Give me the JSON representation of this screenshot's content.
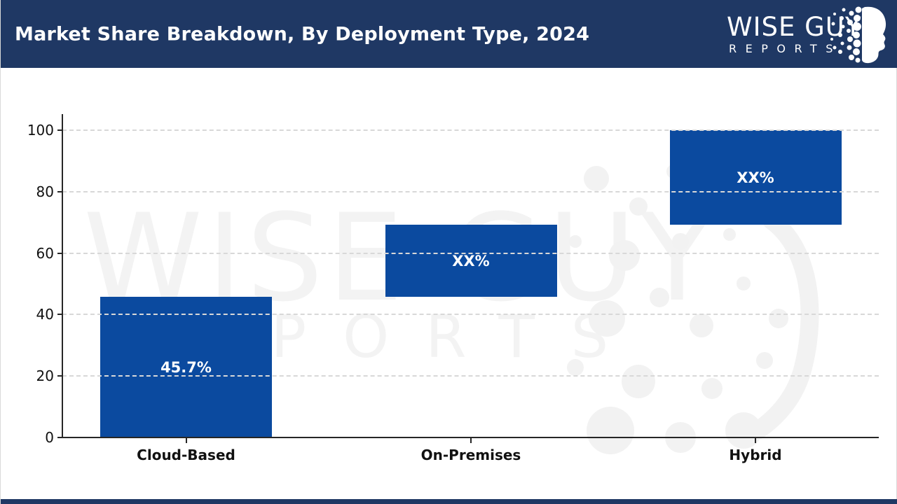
{
  "header": {
    "title": "Market Share Breakdown, By Deployment Type, 2024",
    "logo": {
      "line1": "WISE GUY",
      "line2": "REPORTS"
    }
  },
  "watermark": {
    "line1": "WISE GUY",
    "line2": "REPORTS"
  },
  "chart_data": {
    "type": "bar",
    "subtype": "floating-waterfall",
    "title": "Market Share Breakdown, By Deployment Type, 2024",
    "categories": [
      "Cloud-Based",
      "On-Premises",
      "Hybrid"
    ],
    "segments": [
      {
        "category": "Cloud-Based",
        "start": 0,
        "end": 45.7,
        "label": "45.7%"
      },
      {
        "category": "On-Premises",
        "start": 45.7,
        "end": 69.2,
        "label": "XX%"
      },
      {
        "category": "Hybrid",
        "start": 69.2,
        "end": 100,
        "label": "XX%"
      }
    ],
    "yticks": [
      0,
      20,
      40,
      60,
      80,
      100
    ],
    "ylim": [
      0,
      100
    ],
    "xlabel": "",
    "ylabel": "",
    "grid": "horizontal-dashed",
    "legend": "none",
    "bar_color": "#0B4A9F",
    "bar_label_color": "#ffffff"
  },
  "colors": {
    "header_bg": "#1F3864",
    "footer_bg": "#1F3864",
    "bar": "#0B4A9F",
    "grid": "#d8d8d8",
    "axis": "#262626",
    "watermark": "#f3f3f3"
  }
}
